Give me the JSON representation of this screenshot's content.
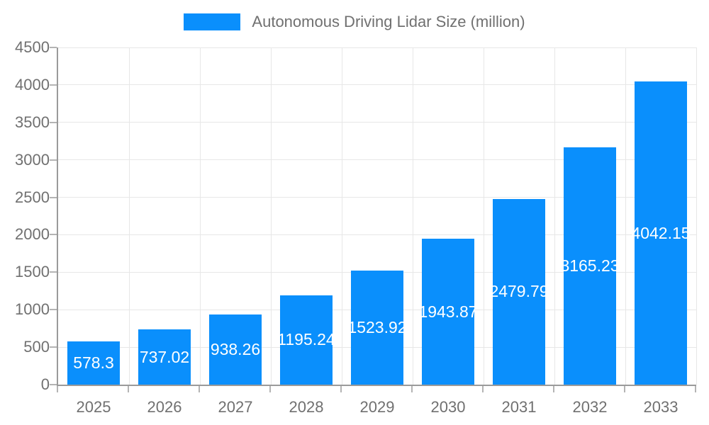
{
  "legend": {
    "label": "Autonomous Driving Lidar Size (million)",
    "swatch_color": "#0a8ffc"
  },
  "chart_data": {
    "type": "bar",
    "title": "Autonomous Driving Lidar Size (million)",
    "categories": [
      "2025",
      "2026",
      "2027",
      "2028",
      "2029",
      "2030",
      "2031",
      "2032",
      "2033"
    ],
    "values": [
      578.3,
      737.02,
      938.26,
      1195.24,
      1523.92,
      1943.87,
      2479.79,
      3165.23,
      4042.15
    ],
    "bar_labels": [
      "578.3",
      "737.02",
      "938.26",
      "1195.24",
      "1523.92",
      "1943.87",
      "2479.79",
      "3165.23",
      "4042.15"
    ],
    "xlabel": "",
    "ylabel": "",
    "ylim": [
      0,
      4500
    ],
    "ytick_step": 500,
    "ytick_labels": [
      "0",
      "500",
      "1000",
      "1500",
      "2000",
      "2500",
      "3000",
      "3500",
      "4000",
      "4500"
    ],
    "grid": true,
    "legend_position": "top",
    "bar_color": "#0a8ffc",
    "value_label_color": "#ffffff"
  },
  "colors": {
    "axis_line": "#9a9a9a",
    "tick": "#b4b4b4",
    "gridline": "#e7e7e7",
    "text": "#707070",
    "background": "#ffffff"
  }
}
